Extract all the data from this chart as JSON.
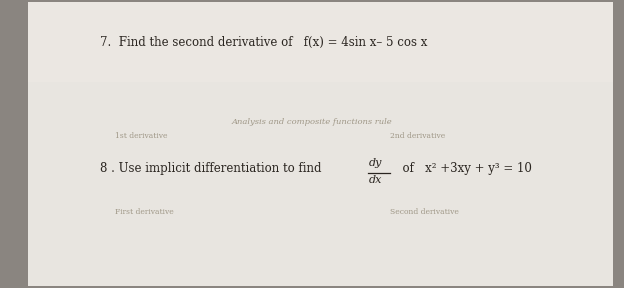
{
  "background_color": "#8a8580",
  "paper_color": "#e8e5e0",
  "text_color": "#2a2520",
  "faded_color": "#a09888",
  "figsize": [
    6.24,
    2.88
  ],
  "dpi": 100,
  "q7_text": "7.  Find the second derivative of   f(x) = 4sin x– 5 cos x",
  "q8_prefix": "8 . Use implicit differentiation to find",
  "q8_frac_num": "dy",
  "q8_frac_den": "dx",
  "q8_suffix": "  of   x² +3xy + y³ = 10",
  "faded_mid": "Analysis and composite functions rule",
  "faded1": "1st derivative",
  "faded2": "2nd derivative",
  "faded3": "First derivative",
  "faded4": "Second derivative"
}
